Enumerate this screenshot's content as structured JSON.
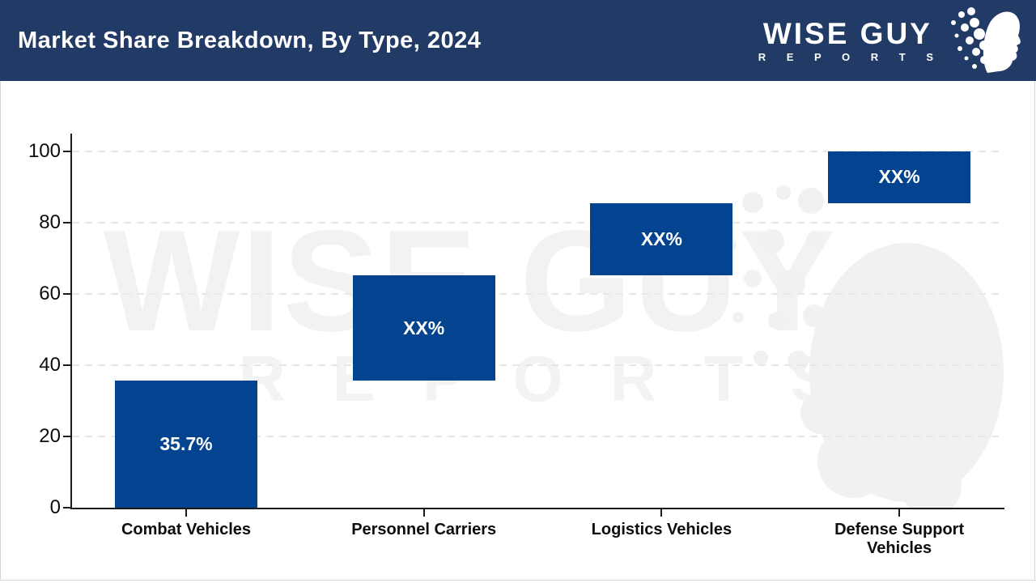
{
  "header": {
    "title": "Market Share Breakdown, By Type, 2024",
    "logo": {
      "line1": "WISE GUY",
      "line2": "R E P O R T S"
    }
  },
  "watermark": {
    "line1": "WISE GUY",
    "line2": "REPORTS"
  },
  "colors": {
    "header_bg": "#213a66",
    "bar": "#04438f",
    "bar_label": "#ffffff",
    "grid": "#e7e7e7",
    "axis": "#1a1a1a",
    "watermark": "#f2f2f2"
  },
  "chart_data": {
    "type": "bar",
    "subtype": "waterfall-floating-bars",
    "title": "Market Share Breakdown, By Type, 2024",
    "categories": [
      "Combat Vehicles",
      "Personnel Carriers",
      "Logistics Vehicles",
      "Defense Support Vehicles"
    ],
    "segments": [
      {
        "category": "Combat Vehicles",
        "start": 0,
        "end": 35.7,
        "label": "35.7%"
      },
      {
        "category": "Personnel Carriers",
        "start": 35.7,
        "end": 65.2,
        "label": "XX%"
      },
      {
        "category": "Logistics Vehicles",
        "start": 65.2,
        "end": 85.5,
        "label": "XX%"
      },
      {
        "category": "Defense Support Vehicles",
        "start": 85.5,
        "end": 100,
        "label": "XX%"
      }
    ],
    "yticks": [
      0,
      20,
      40,
      60,
      80,
      100
    ],
    "ylim": [
      0,
      105
    ],
    "xlabel": "",
    "ylabel": "",
    "grid": "horizontal-dashed",
    "legend": "none",
    "bar_color": "#04438f",
    "label_color": "#ffffff"
  }
}
